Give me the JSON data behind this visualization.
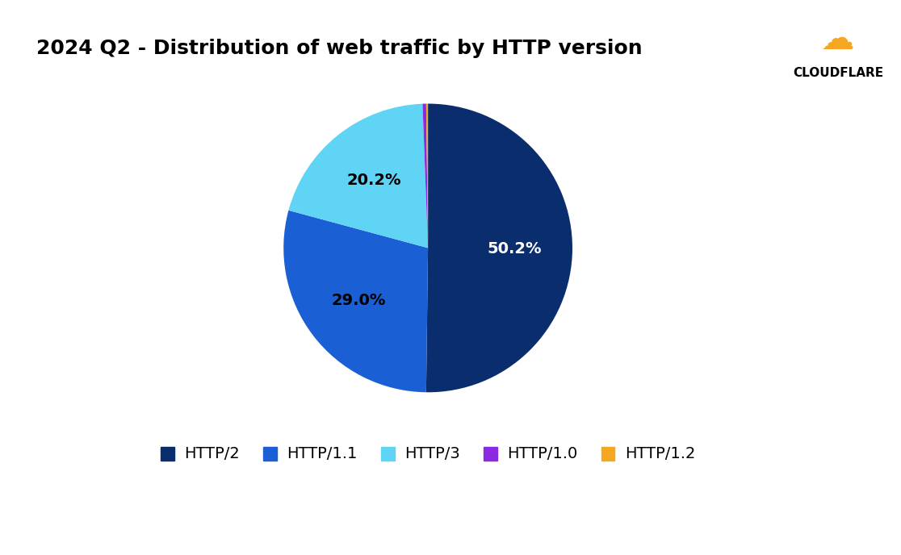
{
  "title": "2024 Q2 - Distribution of web traffic by HTTP version",
  "title_fontsize": 18,
  "title_fontweight": "bold",
  "labels": [
    "HTTP/2",
    "HTTP/1.1",
    "HTTP/3",
    "HTTP/1.0",
    "HTTP/1.2"
  ],
  "values": [
    50.2,
    29.0,
    20.2,
    0.4,
    0.2
  ],
  "colors": [
    "#0a2d6e",
    "#1a5fd4",
    "#5fd4f4",
    "#8a2be2",
    "#f5a623"
  ],
  "pct_labels": [
    "50.2%",
    "29.0%",
    "20.2%",
    "",
    ""
  ],
  "legend_labels": [
    "HTTP/2",
    "HTTP/1.1",
    "HTTP/3",
    "HTTP/1.0",
    "HTTP/1.2"
  ],
  "legend_colors": [
    "#0a2d6e",
    "#1a5fd4",
    "#5fd4f4",
    "#8a2be2",
    "#f5a623"
  ],
  "background_color": "#ffffff",
  "text_color": "#000000",
  "startangle": 90,
  "pct_fontsize": 14,
  "legend_fontsize": 14
}
